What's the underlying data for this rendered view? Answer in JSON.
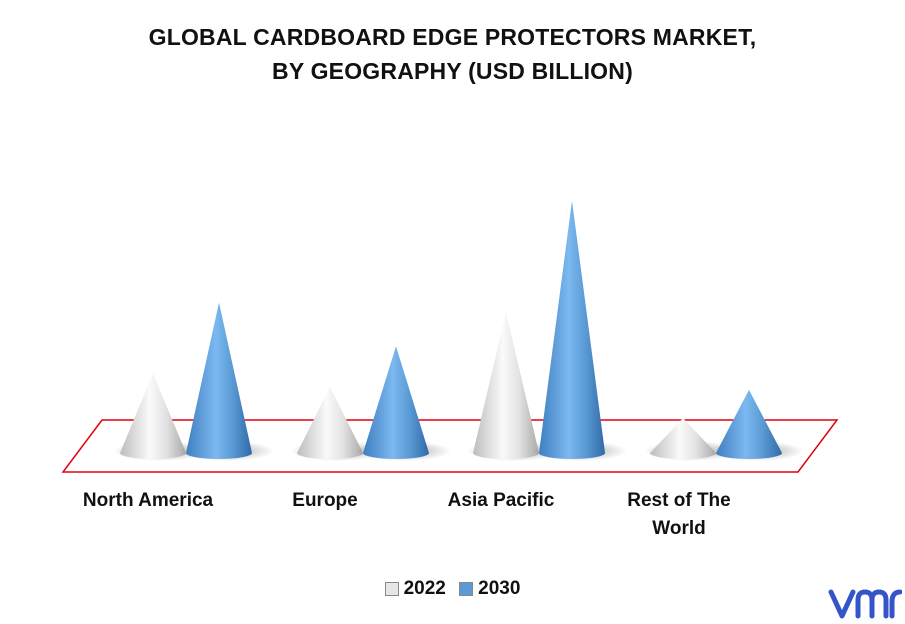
{
  "title_line1": "GLOBAL CARDBOARD EDGE PROTECTORS MARKET,",
  "title_line2": "BY GEOGRAPHY (USD BILLION)",
  "chart_data": {
    "type": "bar",
    "style": "3d-cone",
    "title": "GLOBAL CARDBOARD EDGE PROTECTORS MARKET, BY GEOGRAPHY (USD BILLION)",
    "categories": [
      "North America",
      "Europe",
      "Asia Pacific",
      "Rest of The World"
    ],
    "series": [
      {
        "name": "2022",
        "values": [
          0.82,
          0.68,
          1.45,
          0.36
        ],
        "color": "#e6e6e6"
      },
      {
        "name": "2030",
        "values": [
          1.55,
          1.1,
          2.6,
          0.65
        ],
        "color": "#5b9bd5"
      }
    ],
    "ylim": [
      0,
      2.7
    ],
    "grid": false,
    "legend_position": "bottom",
    "floor_color": "#e0000f"
  },
  "legend": {
    "item1": "2022",
    "item2": "2030"
  },
  "logo": {
    "icon": "vmr-logo-icon",
    "color": "#3455c9"
  }
}
